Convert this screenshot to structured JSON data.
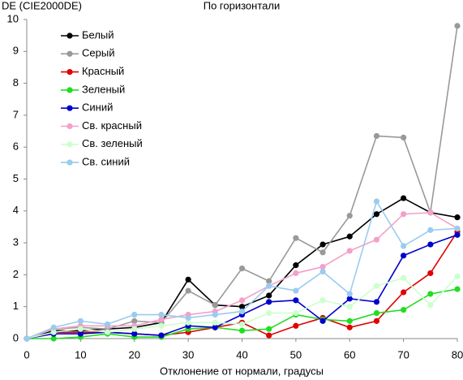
{
  "chart_data": {
    "type": "line",
    "title": "По горизонтали",
    "y_label": "DE (CIE2000DE)",
    "x_label": "Отклонение от нормали, градусы",
    "x": [
      0,
      5,
      10,
      15,
      20,
      25,
      30,
      35,
      40,
      45,
      50,
      55,
      60,
      65,
      70,
      75,
      80
    ],
    "xlim": [
      0,
      80
    ],
    "xticks": [
      0,
      10,
      20,
      30,
      40,
      50,
      60,
      70,
      80
    ],
    "ylim": [
      0,
      10
    ],
    "yticks": [
      0,
      1,
      2,
      3,
      4,
      5,
      6,
      7,
      8,
      9,
      10
    ],
    "grid": false,
    "legend": "top-left",
    "series": [
      {
        "name": "Белый",
        "color": "#000000",
        "values": [
          0,
          0.25,
          0.25,
          0.3,
          0.35,
          0.5,
          1.85,
          1.05,
          1.0,
          1.35,
          2.3,
          2.95,
          3.2,
          3.9,
          4.4,
          3.95,
          3.8
        ]
      },
      {
        "name": "Серый",
        "color": "#999999",
        "values": [
          0,
          0.3,
          0.35,
          0.3,
          0.55,
          0.5,
          1.5,
          1.05,
          2.2,
          1.8,
          3.15,
          2.7,
          3.85,
          6.35,
          6.3,
          3.95,
          9.8
        ]
      },
      {
        "name": "Красный",
        "color": "#e00000",
        "values": [
          0,
          0.2,
          0.2,
          0.2,
          0.15,
          0.1,
          0.2,
          0.35,
          0.5,
          0.1,
          0.4,
          0.65,
          0.35,
          0.55,
          1.45,
          2.05,
          3.35
        ]
      },
      {
        "name": "Зеленый",
        "color": "#22dd22",
        "values": [
          0,
          0.0,
          0.05,
          0.15,
          0.05,
          0.05,
          0.3,
          0.35,
          0.25,
          0.3,
          0.75,
          0.6,
          0.55,
          0.8,
          0.9,
          1.4,
          1.55
        ]
      },
      {
        "name": "Синий",
        "color": "#0000cc",
        "values": [
          0,
          0.15,
          0.15,
          0.2,
          0.15,
          0.1,
          0.4,
          0.35,
          0.75,
          1.15,
          1.2,
          0.55,
          1.25,
          1.15,
          2.6,
          2.95,
          3.25
        ]
      },
      {
        "name": "Св. красный",
        "color": "#f4a0c8",
        "values": [
          0,
          0.3,
          0.4,
          0.4,
          0.4,
          0.6,
          0.75,
          0.85,
          1.2,
          1.65,
          2.05,
          2.25,
          2.75,
          3.1,
          3.9,
          3.95,
          3.45
        ]
      },
      {
        "name": "Св. зеленый",
        "color": "#ccffcc",
        "values": [
          0,
          0.2,
          0.3,
          0.2,
          0.3,
          0.4,
          0.5,
          0.5,
          0.45,
          0.8,
          0.8,
          1.2,
          1.0,
          1.65,
          1.9,
          1.05,
          1.95
        ]
      },
      {
        "name": "Св. синий",
        "color": "#99ccee",
        "values": [
          0,
          0.35,
          0.55,
          0.45,
          0.75,
          0.75,
          0.65,
          0.75,
          0.85,
          1.65,
          1.5,
          2.1,
          1.4,
          4.3,
          2.9,
          3.4,
          3.45
        ]
      }
    ]
  }
}
